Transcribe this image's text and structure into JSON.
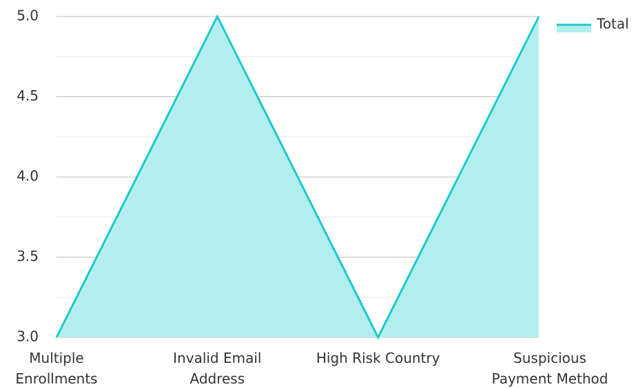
{
  "chart_data": {
    "type": "area",
    "categories": [
      "Multiple\nEnrollments",
      "Invalid Email\nAddress",
      "High Risk Country",
      "Suspicious\nPayment Method"
    ],
    "series": [
      {
        "name": "Total",
        "color": "#1ec8c8",
        "values": [
          3,
          5,
          3,
          5
        ]
      }
    ],
    "ylim": [
      3,
      5
    ],
    "yticks": [
      {
        "value": 3,
        "label": "3.0"
      },
      {
        "value": 3.5,
        "label": "3.5"
      },
      {
        "value": 4,
        "label": "4.0"
      },
      {
        "value": 4.5,
        "label": "4.5"
      },
      {
        "value": 5,
        "label": "5.0"
      }
    ],
    "minor_yticks": [
      3.25,
      3.75,
      4.25,
      4.75
    ],
    "grid": true,
    "legend": "right"
  }
}
